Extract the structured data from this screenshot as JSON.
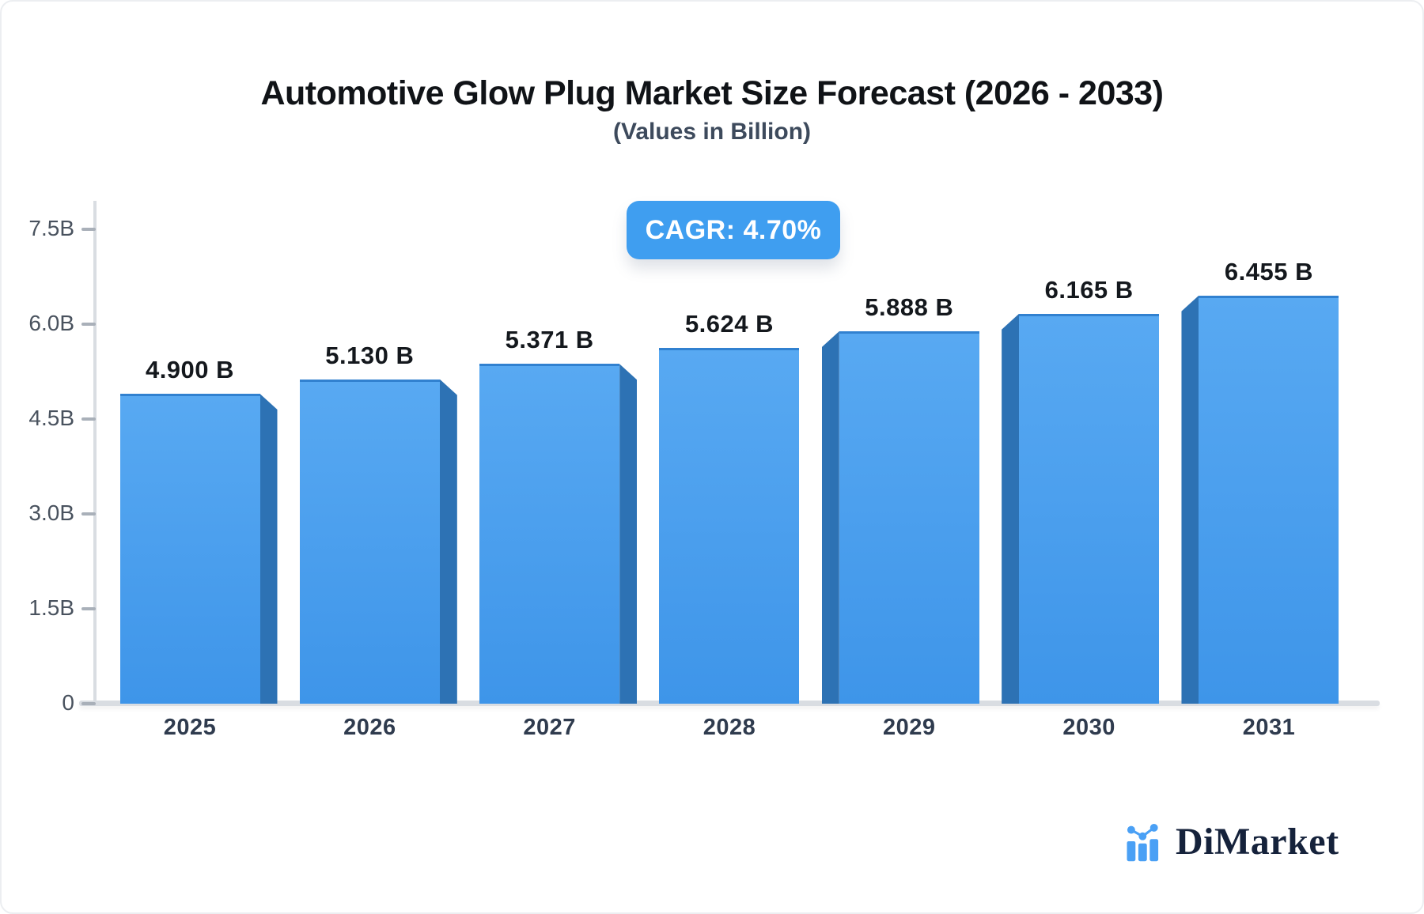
{
  "chart_data": {
    "type": "bar",
    "title": "Automotive Glow Plug Market Size Forecast (2026 - 2033)",
    "subtitle": "(Values in Billion)",
    "cagr_badge": "CAGR: 4.70%",
    "categories": [
      "2025",
      "2026",
      "2027",
      "2028",
      "2029",
      "2030",
      "2031"
    ],
    "values": [
      4.9,
      5.13,
      5.371,
      5.624,
      5.888,
      6.165,
      6.455
    ],
    "value_labels": [
      "4.900 B",
      "5.130 B",
      "5.371 B",
      "5.624 B",
      "5.888 B",
      "6.165 B",
      "6.455 B"
    ],
    "unit": "Billion",
    "ylim": [
      0,
      7.5
    ],
    "yticks": [
      {
        "label": "7.5B",
        "value": 7.5
      },
      {
        "label": "6.0B",
        "value": 6.0
      },
      {
        "label": "4.5B",
        "value": 4.5
      },
      {
        "label": "3.0B",
        "value": 3.0
      },
      {
        "label": "1.5B",
        "value": 1.5
      },
      {
        "label": "0",
        "value": 0
      }
    ],
    "grid": false,
    "legend": "none",
    "bar_style": "3d-extruded"
  },
  "branding": {
    "name": "DiMarket",
    "icon": "bar-line-chart-logo-icon"
  },
  "colors": {
    "title": "#101317",
    "subtitle": "#3d4a5c",
    "badge_bg": "#3f9ef0",
    "badge_text": "#ffffff",
    "bar_face_top": "#58a9f2",
    "bar_face_bottom": "#3e95e9",
    "bar_side": "#2d72b4",
    "axis": "#d9dde2",
    "tick": "#a9b0b9",
    "value_label": "#14181d",
    "x_label": "#2f3b4e",
    "y_label": "#49525e",
    "logo_text": "#15223b",
    "logo_blue": "#4aa0f5"
  }
}
